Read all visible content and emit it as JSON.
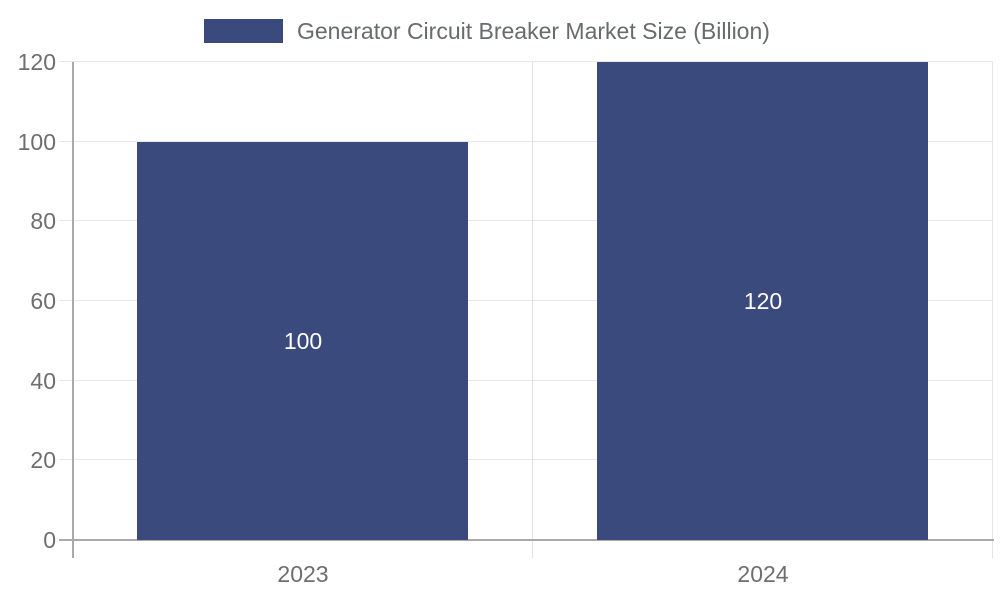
{
  "chart_data": {
    "type": "bar",
    "title": "Generator Circuit Breaker Market Size (Billion)",
    "categories": [
      "2023",
      "2024"
    ],
    "values": [
      100,
      120
    ],
    "value_labels": [
      "100",
      "120"
    ],
    "xlabel": "",
    "ylabel": "",
    "ylim": [
      0,
      120
    ],
    "yticks": [
      0,
      20,
      40,
      60,
      80,
      100,
      120
    ],
    "grid": true,
    "legend_position": "top",
    "colors": {
      "bar": "#3A4A7D",
      "bar_label": "#FFFFFF",
      "axis_line": "#A9A9A9",
      "grid_line": "#E8E8E8",
      "boundary_line": "#E3E3E3",
      "tick_label": "#6E6E6E",
      "legend_text": "#666B6E",
      "background": "#FFFFFF"
    }
  },
  "legend": {
    "items": [
      {
        "label": "Generator Circuit Breaker Market Size (Billion)"
      }
    ]
  }
}
